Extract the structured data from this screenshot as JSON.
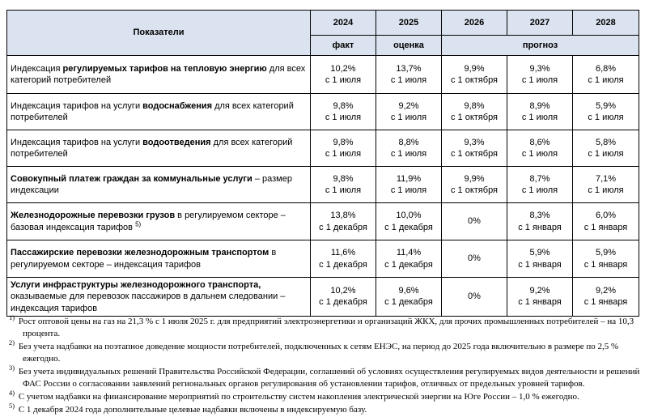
{
  "table": {
    "header": {
      "indicator": "Показатели",
      "years": [
        "2024",
        "2025",
        "2026",
        "2027",
        "2028"
      ],
      "year_types": [
        {
          "label": "факт",
          "span": 1
        },
        {
          "label": "оценка",
          "span": 1
        },
        {
          "label": "прогноз",
          "span": 3
        }
      ]
    },
    "rows": [
      {
        "height": 47,
        "label": [
          {
            "text": "Индексация ",
            "bold": false
          },
          {
            "text": "регулируемых тарифов на тепловую энергию",
            "bold": true
          },
          {
            "text": " для всех категорий потребителей",
            "bold": false
          }
        ],
        "values": [
          {
            "value": "10,2%",
            "date": "с 1 июля"
          },
          {
            "value": "13,7%",
            "date": "с 1 июля"
          },
          {
            "value": "9,9%",
            "date": "с 1 октября"
          },
          {
            "value": "9,3%",
            "date": "с 1 июля"
          },
          {
            "value": "6,8%",
            "date": "с 1 июля"
          }
        ]
      },
      {
        "height": 45,
        "label": [
          {
            "text": "Индексация тарифов на услуги ",
            "bold": false
          },
          {
            "text": "водоснабжения",
            "bold": true
          },
          {
            "text": " для всех категорий потребителей",
            "bold": false
          }
        ],
        "values": [
          {
            "value": "9,8%",
            "date": "с 1 июля"
          },
          {
            "value": "9,2%",
            "date": "с 1 июля"
          },
          {
            "value": "9,8%",
            "date": "с 1 октября"
          },
          {
            "value": "8,9%",
            "date": "с 1 июля"
          },
          {
            "value": "5,9%",
            "date": "с 1 июля"
          }
        ]
      },
      {
        "height": 45,
        "label": [
          {
            "text": "Индексация тарифов на услуги ",
            "bold": false
          },
          {
            "text": "водоотведения",
            "bold": true
          },
          {
            "text": " для всех категорий потребителей",
            "bold": false
          }
        ],
        "values": [
          {
            "value": "9,8%",
            "date": "с 1 июля"
          },
          {
            "value": "8,8%",
            "date": "с 1 июля"
          },
          {
            "value": "9,3%",
            "date": "с 1 октября"
          },
          {
            "value": "8,6%",
            "date": "с 1 июля"
          },
          {
            "value": "5,8%",
            "date": "с 1 июля"
          }
        ]
      },
      {
        "height": 45,
        "label": [
          {
            "text": "Совокупный платеж граждан за коммунальные услуги",
            "bold": true
          },
          {
            "text": " – размер индексации",
            "bold": false
          }
        ],
        "values": [
          {
            "value": "9,8%",
            "date": "с 1 июля"
          },
          {
            "value": "11,9%",
            "date": "с 1 июля"
          },
          {
            "value": "9,9%",
            "date": "с 1 октября"
          },
          {
            "value": "8,7%",
            "date": "с 1 июля"
          },
          {
            "value": "7,1%",
            "date": "с 1 июля"
          }
        ]
      },
      {
        "height": 46,
        "label": [
          {
            "text": "Железнодорожные перевозки грузов",
            "bold": true
          },
          {
            "text": " в регулируемом секторе – базовая индексация тарифов ",
            "bold": false
          },
          {
            "text": "5)",
            "bold": false,
            "sup": true
          }
        ],
        "values": [
          {
            "value": "13,8%",
            "date": "с 1 декабря"
          },
          {
            "value": "10,0%",
            "date": "с 1 декабря"
          },
          {
            "value": "0%",
            "date": ""
          },
          {
            "value": "8,3%",
            "date": "с 1 января"
          },
          {
            "value": "6,0%",
            "date": "с 1 января"
          }
        ]
      },
      {
        "height": 46,
        "label": [
          {
            "text": "Пассажирские перевозки железнодорожным транспортом",
            "bold": true
          },
          {
            "text": " в регулируемом секторе – индексация тарифов",
            "bold": false
          }
        ],
        "values": [
          {
            "value": "11,6%",
            "date": "с 1 декабря"
          },
          {
            "value": "11,4%",
            "date": "с 1 декабря"
          },
          {
            "value": "0%",
            "date": ""
          },
          {
            "value": "5,9%",
            "date": "с 1 января"
          },
          {
            "value": "5,9%",
            "date": "с 1 января"
          }
        ]
      },
      {
        "height": 44,
        "label": [
          {
            "text": "Услуги инфраструктуры железнодорожного транспорта,",
            "bold": true
          },
          {
            "text": " оказываемые для перевозок пассажиров в дальнем следовании – индексация тарифов",
            "bold": false
          }
        ],
        "values": [
          {
            "value": "10,2%",
            "date": "с 1 декабря"
          },
          {
            "value": "9,6%",
            "date": "с 1 декабря"
          },
          {
            "value": "0%",
            "date": ""
          },
          {
            "value": "9,2%",
            "date": "с 1 января"
          },
          {
            "value": "9,2%",
            "date": "с 1 января"
          }
        ]
      }
    ]
  },
  "footnotes": [
    {
      "marker": "1)",
      "text": "Рост оптовой цены на газ на 21,3 % с 1 июля 2025 г. для предприятий электроэнергетики и организаций ЖКХ, для прочих промышленных потребителей – на 10,3 процента."
    },
    {
      "marker": "2)",
      "text": "Без учета надбавки на поэтапное доведение мощности потребителей, подключенных к сетям ЕНЭС, на период до 2025 года включительно в размере по 2,5 % ежегодно."
    },
    {
      "marker": "3)",
      "text": "Без учета индивидуальных решений Правительства Российской Федерации, соглашений об условиях осуществления регулируемых видов деятельности и решений ФАС России о согласовании заявлений региональных органов регулирования об установлении тарифов, отличных от предельных уровней тарифов."
    },
    {
      "marker": "4)",
      "text": "С учетом надбавки на финансирование мероприятий по строительству систем накопления электрической энергии на Юге России – 1,0 % ежегодно."
    },
    {
      "marker": "5)",
      "text": "С 1 декабря 2024 года дополнительные целевые надбавки включены в индексируемую базу."
    }
  ],
  "colors": {
    "header_bg": "#dce3f0",
    "border": "#000000"
  }
}
